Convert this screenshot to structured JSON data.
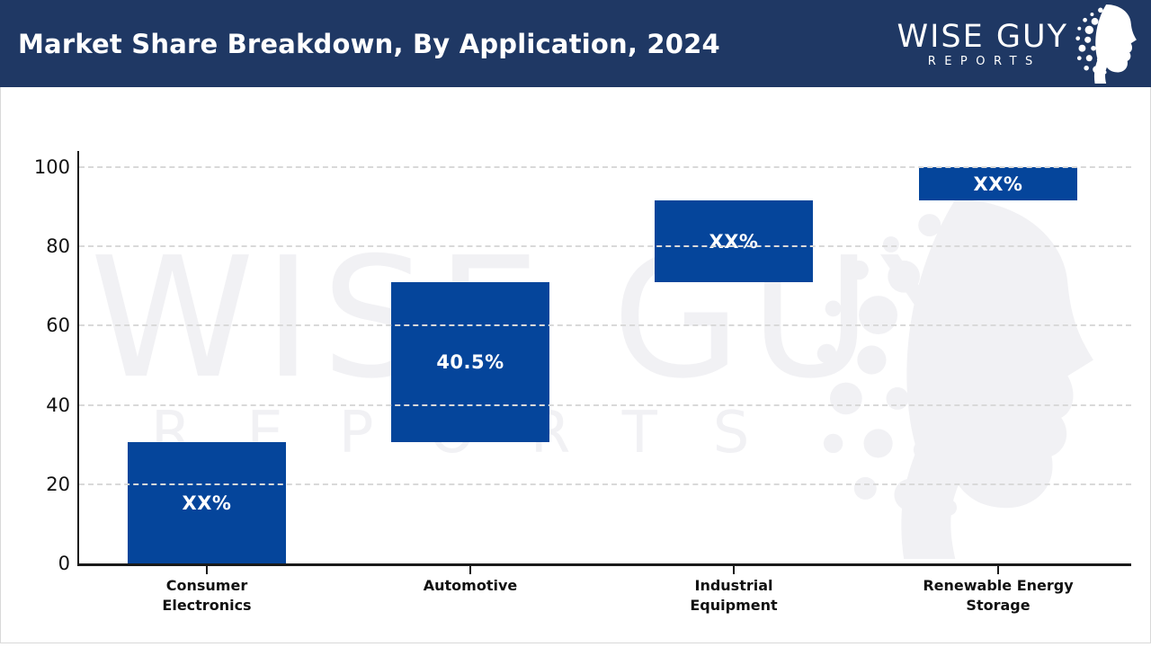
{
  "header": {
    "title": "Market Share Breakdown, By Application, 2024",
    "logo": {
      "line1": "WISE GUY",
      "line2": "REPORTS"
    }
  },
  "watermark": {
    "line1": "WISE GUY",
    "line2": "REPORTS"
  },
  "colors": {
    "header_bg": "#1f3864",
    "bar": "#05459b",
    "grid": "#d9d9d9",
    "axis": "#1a1a1a",
    "watermark": "#f1f1f4"
  },
  "chart_data": {
    "type": "bar",
    "subtype": "waterfall-floating-bars",
    "title": "Market Share Breakdown, By Application, 2024",
    "xlabel": "",
    "ylabel": "",
    "ylim": [
      0,
      100
    ],
    "yticks": [
      0,
      20,
      40,
      60,
      80,
      100
    ],
    "grid": "horizontal-dashed",
    "legend": null,
    "bar_color": "#05459b",
    "categories": [
      "Consumer Electronics",
      "Automotive",
      "Industrial Equipment",
      "Renewable Energy Storage"
    ],
    "category_lines": [
      [
        "Consumer",
        "Electronics"
      ],
      [
        "Automotive"
      ],
      [
        "Industrial",
        "Equipment"
      ],
      [
        "Renewable Energy",
        "Storage"
      ]
    ],
    "segments": [
      {
        "category": "Consumer Electronics",
        "start": 0,
        "end": 30.5,
        "size": 30.5,
        "label": "XX%"
      },
      {
        "category": "Automotive",
        "start": 30.5,
        "end": 71,
        "size": 40.5,
        "label": "40.5%"
      },
      {
        "category": "Industrial Equipment",
        "start": 71,
        "end": 91.5,
        "size": 20.5,
        "label": "XX%"
      },
      {
        "category": "Renewable Energy Storage",
        "start": 91.5,
        "end": 100,
        "size": 8.5,
        "label": "XX%"
      }
    ]
  }
}
